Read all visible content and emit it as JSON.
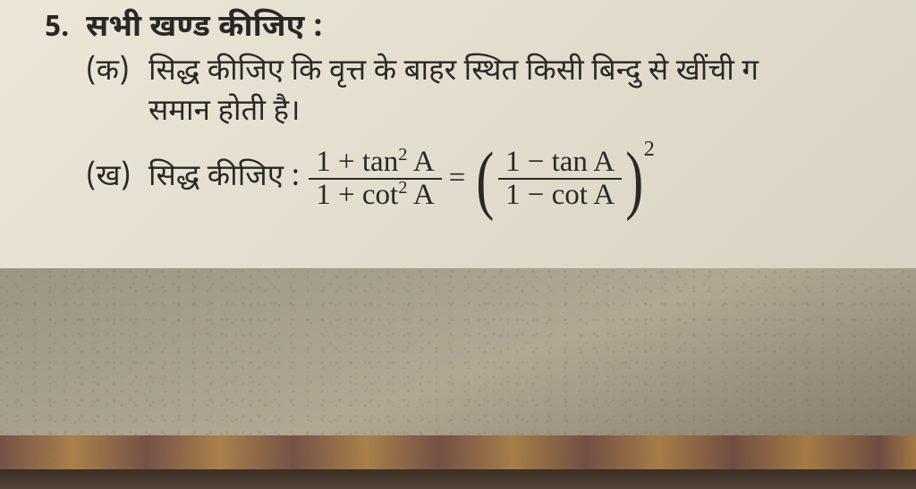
{
  "question": {
    "number": "5.",
    "lead": "सभी खण्ड कीजिए :",
    "parts": {
      "a": {
        "label": "(क)",
        "text_line1": "सिद्ध कीजिए कि वृत्त के बाहर स्थित किसी बिन्दु से खींची ग",
        "text_line2": "समान होती है।"
      },
      "b": {
        "label": "(ख)",
        "text": "सिद्ध कीजिए :",
        "formula": {
          "lhs": {
            "num_html": "1 + tan<sup>2</sup> A",
            "den_html": "1 + cot<sup>2</sup> A"
          },
          "rhs": {
            "num_html": "1 − tan A",
            "den_html": "1 − cot A",
            "power": "2"
          }
        }
      }
    }
  },
  "colors": {
    "paper_bg": "#e4dfd0",
    "text": "#2a2826",
    "fabric_bg": "#9c9584",
    "band_dark": "#6b443a",
    "band_light": "#a97a3e"
  }
}
